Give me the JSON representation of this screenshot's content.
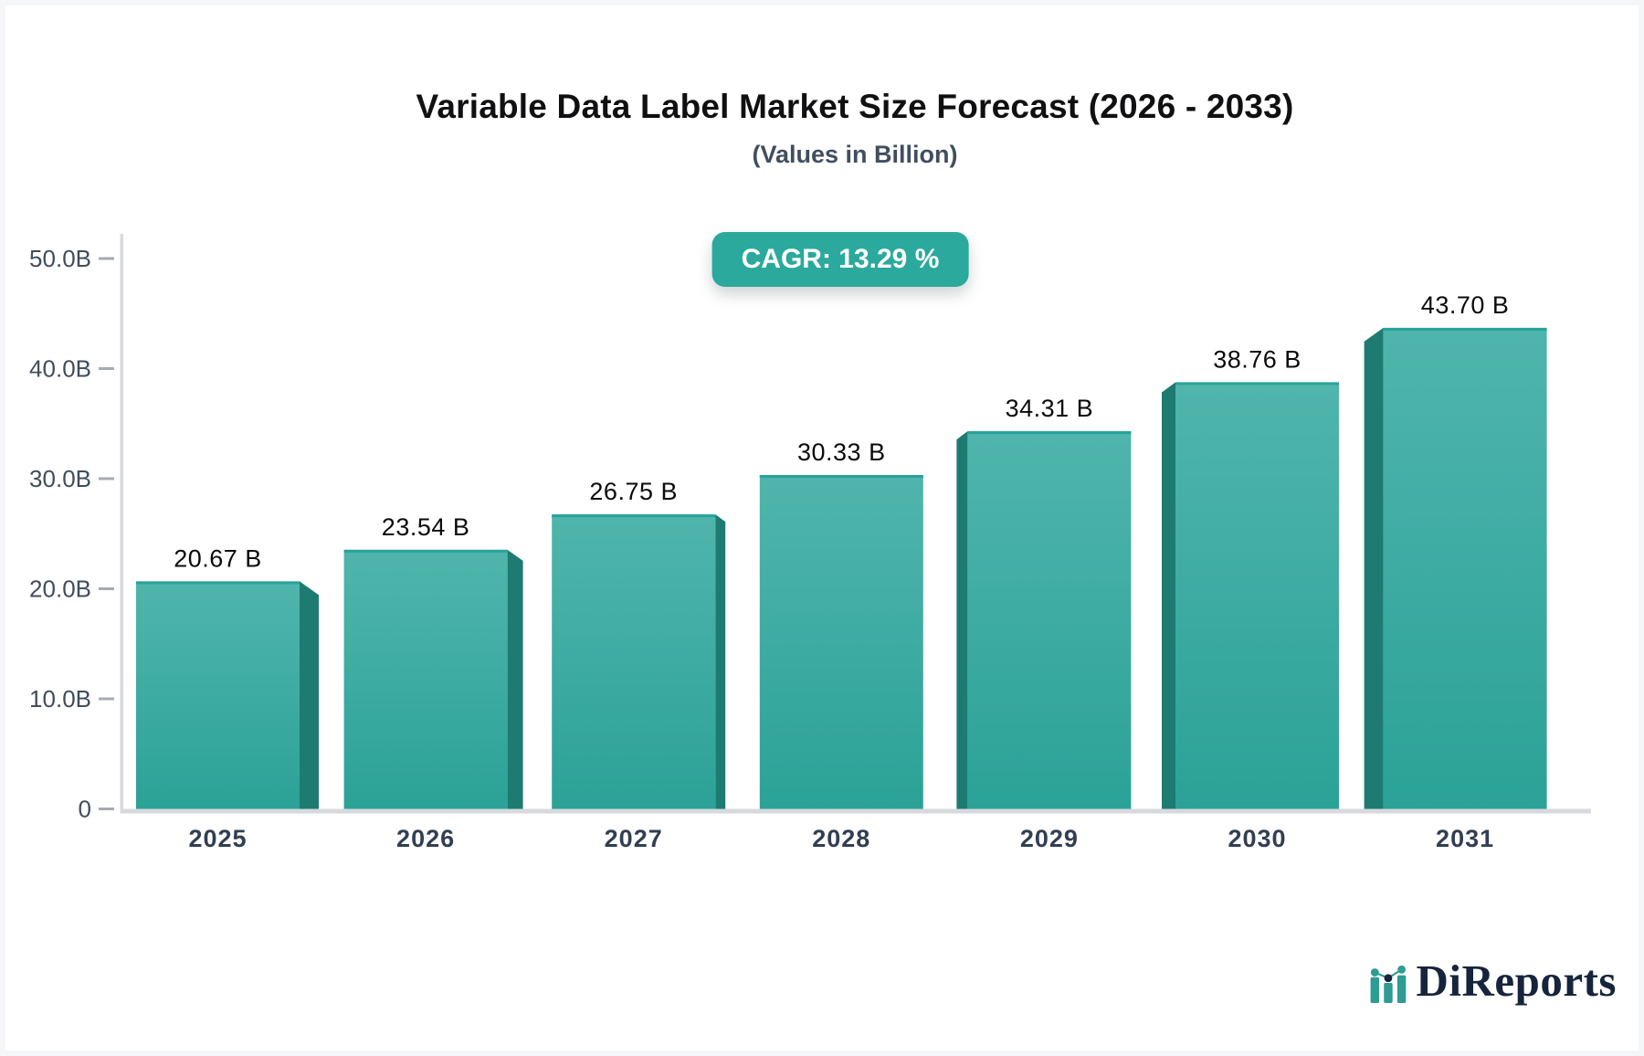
{
  "chart_data": {
    "type": "bar",
    "title": "Variable Data Label Market Size Forecast (2026 - 2033)",
    "subtitle": "(Values in Billion)",
    "cagr_label": "CAGR: 13.29 %",
    "categories": [
      "2025",
      "2026",
      "2027",
      "2028",
      "2029",
      "2030",
      "2031"
    ],
    "values": [
      20.67,
      23.54,
      26.75,
      30.33,
      34.31,
      38.76,
      43.7
    ],
    "value_labels": [
      "20.67 B",
      "23.54 B",
      "26.75 B",
      "30.33 B",
      "34.31 B",
      "38.76 B",
      "43.70 B"
    ],
    "xlabel": "",
    "ylabel": "",
    "ylim": [
      0,
      50
    ],
    "yticks": [
      {
        "value": 0,
        "label": "0"
      },
      {
        "value": 10,
        "label": "10.0B"
      },
      {
        "value": 20,
        "label": "20.0B"
      },
      {
        "value": 30,
        "label": "30.0B"
      },
      {
        "value": 40,
        "label": "40.0B"
      },
      {
        "value": 50,
        "label": "50.0B"
      }
    ],
    "grid": false,
    "legend": null,
    "style_3d": true,
    "colors": {
      "bar_face_top": "#50b5ac",
      "bar_face_bottom": "#2ba297",
      "bar_top_line": "#27a399",
      "bar_side": "#1e7b72",
      "axis_line": "#d7d9de",
      "tick": "#a6aab2",
      "tick_label": "#414c5c",
      "category_label": "#323e52",
      "value_label": "#0b0b0b"
    }
  },
  "badge": {
    "bg": "#2ba99c",
    "text_color": "#ffffff"
  },
  "logo": {
    "text": "DiReports",
    "text_color": "#16243c",
    "icon": "bar-chart-with-trend-dots-icon",
    "icon_teal": "#2e9c93",
    "icon_navy": "#16243c"
  }
}
